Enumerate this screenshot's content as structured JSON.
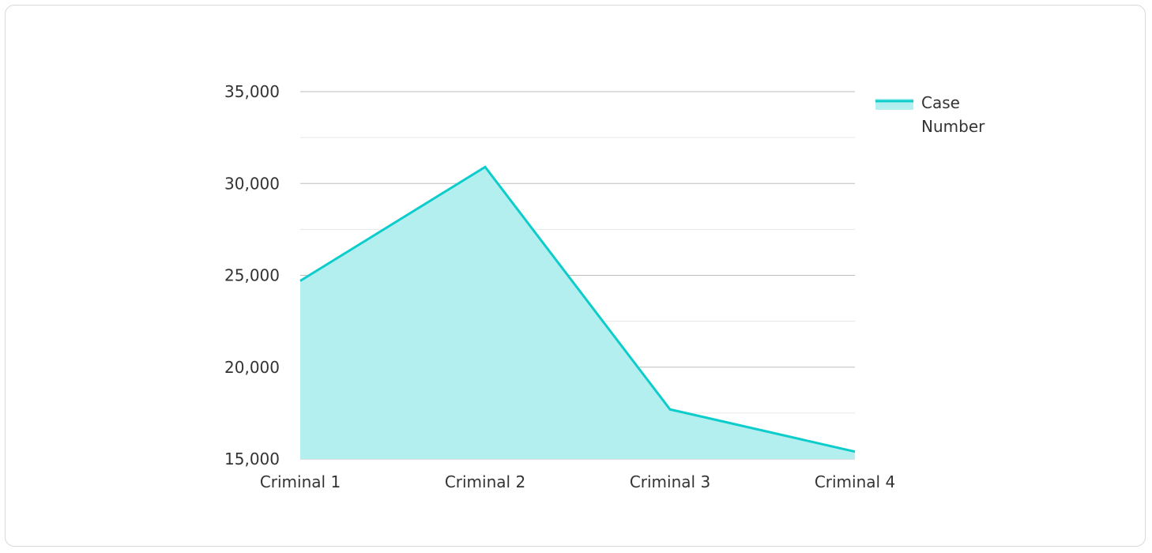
{
  "chart_data": {
    "type": "area",
    "categories": [
      "Criminal 1",
      "Criminal 2",
      "Criminal 3",
      "Criminal 4"
    ],
    "series": [
      {
        "name": "Case Number",
        "values": [
          24700,
          30900,
          17700,
          15400
        ]
      }
    ],
    "title": "",
    "xlabel": "",
    "ylabel": "",
    "ylim": [
      15000,
      35000
    ],
    "yticks": [
      15000,
      20000,
      25000,
      30000,
      35000
    ],
    "ytick_labels": [
      "15,000",
      "20,000",
      "25,000",
      "30,000",
      "35,000"
    ],
    "grid": true,
    "legend": {
      "position": "right-top",
      "lines": [
        "Case",
        "Number"
      ]
    },
    "colors": {
      "line": "#0ccccc",
      "fill": "#b2efee",
      "major_grid": "#bdbdbd",
      "minor_grid": "#e6e6e6"
    }
  }
}
